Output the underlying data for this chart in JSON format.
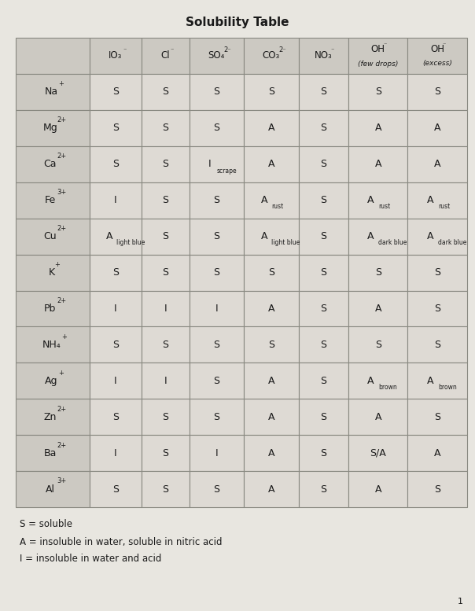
{
  "title": "Solubility Table",
  "col_header_mains": [
    "IO₃",
    "Cl",
    "SO₄",
    "CO₃",
    "NO₃",
    "OH",
    "OH"
  ],
  "col_header_sups": [
    "⁻",
    "⁻",
    "2⁻",
    "2⁻",
    "⁻",
    "⁻",
    "⁻"
  ],
  "col_header_subs": [
    null,
    null,
    null,
    null,
    null,
    "(few drops)",
    "(excess)"
  ],
  "row_header_mains": [
    "Na",
    "Mg",
    "Ca",
    "Fe",
    "Cu",
    "K",
    "Pb",
    "NH₄",
    "Ag",
    "Zn",
    "Ba",
    "Al"
  ],
  "row_header_sups": [
    "+",
    "2+",
    "2+",
    "3+",
    "2+",
    "+",
    "2+",
    "+",
    "+",
    "2+",
    "2+",
    "3+"
  ],
  "table_data": [
    [
      "S",
      "S",
      "S",
      "S",
      "S",
      "S",
      "S"
    ],
    [
      "S",
      "S",
      "S",
      "A",
      "S",
      "A",
      "A"
    ],
    [
      "S",
      "S",
      "I|scrape",
      "A",
      "S",
      "A",
      "A"
    ],
    [
      "I",
      "S",
      "S",
      "A|rust",
      "S",
      "A|rust",
      "A|rust"
    ],
    [
      "A|light blue",
      "S",
      "S",
      "A|light blue",
      "S",
      "A|dark blue",
      "A|dark blue"
    ],
    [
      "S",
      "S",
      "S",
      "S",
      "S",
      "S",
      "S"
    ],
    [
      "I",
      "I",
      "I",
      "A",
      "S",
      "A",
      "S"
    ],
    [
      "S",
      "S",
      "S",
      "S",
      "S",
      "S",
      "S"
    ],
    [
      "I",
      "I",
      "S",
      "A",
      "S",
      "A|brown",
      "A|brown"
    ],
    [
      "S",
      "S",
      "S",
      "A",
      "S",
      "A",
      "S"
    ],
    [
      "I",
      "S",
      "I",
      "A",
      "S",
      "S/A",
      "A"
    ],
    [
      "S",
      "S",
      "S",
      "A",
      "S",
      "A",
      "S"
    ]
  ],
  "legend": [
    "S = soluble",
    "A = insoluble in water, soluble in nitric acid",
    "I = insoluble in water and acid"
  ],
  "page_bg": "#e8e6e0",
  "cell_bg": "#dedad4",
  "header_cell_bg": "#ccc9c2",
  "border_color": "#888880",
  "text_color": "#1a1a1a",
  "title_fontsize": 11,
  "header_fontsize": 8.5,
  "row_header_fontsize": 9,
  "data_fontsize": 9,
  "sub_fontsize": 5.5,
  "legend_fontsize": 8.5
}
